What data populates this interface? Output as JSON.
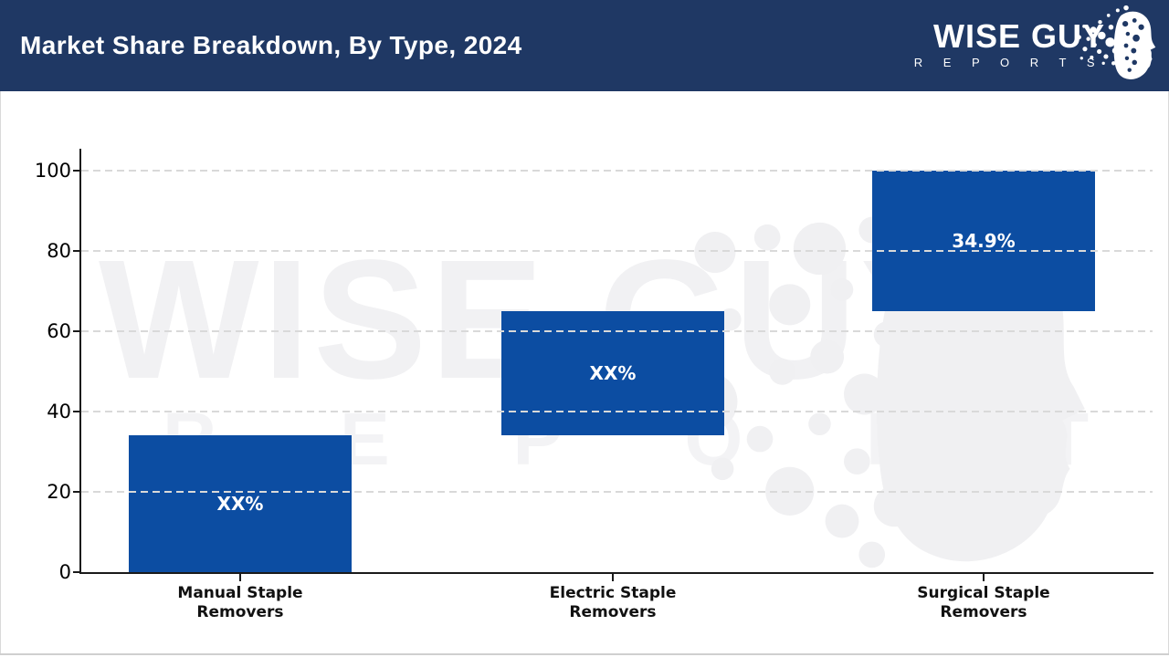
{
  "header": {
    "title": "Market Share Breakdown, By Type, 2024",
    "bg_color": "#1f3864",
    "logo": {
      "line1": "WISE GUY",
      "line2": "R E P O R T S"
    }
  },
  "watermark": {
    "line1": "WISE GUY",
    "line2": "R E P O R T S"
  },
  "chart_data": {
    "type": "bar",
    "subtype": "floating-segment-breakdown",
    "title": "Market Share Breakdown, By Type, 2024",
    "categories": [
      "Manual Staple Removers",
      "Electric Staple Removers",
      "Surgical Staple Removers"
    ],
    "category_lines": [
      [
        "Manual Staple",
        "Removers"
      ],
      [
        "Electric Staple",
        "Removers"
      ],
      [
        "Surgical Staple",
        "Removers"
      ]
    ],
    "segments": [
      {
        "category": "Manual Staple Removers",
        "from": 0,
        "to": 34.2,
        "label": "XX%"
      },
      {
        "category": "Electric Staple Removers",
        "from": 34.2,
        "to": 65.1,
        "label": "XX%"
      },
      {
        "category": "Surgical Staple Removers",
        "from": 65.1,
        "to": 100,
        "label": "34.9%"
      }
    ],
    "yticks": [
      0,
      20,
      40,
      60,
      80,
      100
    ],
    "ylim": [
      0,
      105
    ],
    "xlabel": "",
    "ylabel": "",
    "grid": {
      "axis": "y",
      "style": "dashed",
      "color": "#d9d9d9",
      "drawn_over_bars": true
    },
    "bar_color": "#0c4da2",
    "bar_label_color": "#ffffff",
    "legend": "none"
  }
}
